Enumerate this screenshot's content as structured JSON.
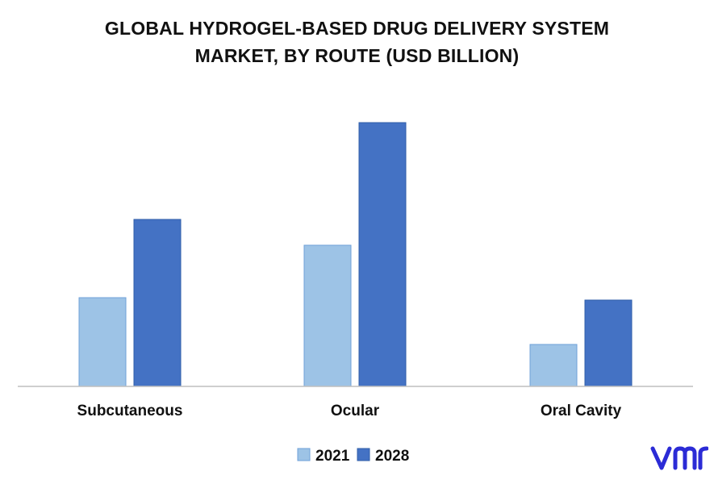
{
  "title_lines": [
    "GLOBAL HYDROGEL-BASED DRUG DELIVERY SYSTEM",
    "MARKET, BY ROUTE (USD BILLION)"
  ],
  "chart_data": {
    "type": "bar",
    "title": "GLOBAL HYDROGEL-BASED DRUG DELIVERY SYSTEM MARKET, BY ROUTE (USD BILLION)",
    "categories": [
      "Subcutaneous",
      "Ocular",
      "Oral Cavity"
    ],
    "series": [
      {
        "name": "2021",
        "values": [
          1.1,
          1.75,
          0.52
        ],
        "color": "#9dc3e6"
      },
      {
        "name": "2028",
        "values": [
          2.07,
          3.27,
          1.07
        ],
        "color": "#4472c4"
      }
    ],
    "ylim": [
      0,
      3.6
    ],
    "grid": false,
    "legend": "bottom-center",
    "xlabel": "",
    "ylabel": ""
  },
  "logo": {
    "name": "vmr-logo",
    "color": "#2b2bd6"
  }
}
